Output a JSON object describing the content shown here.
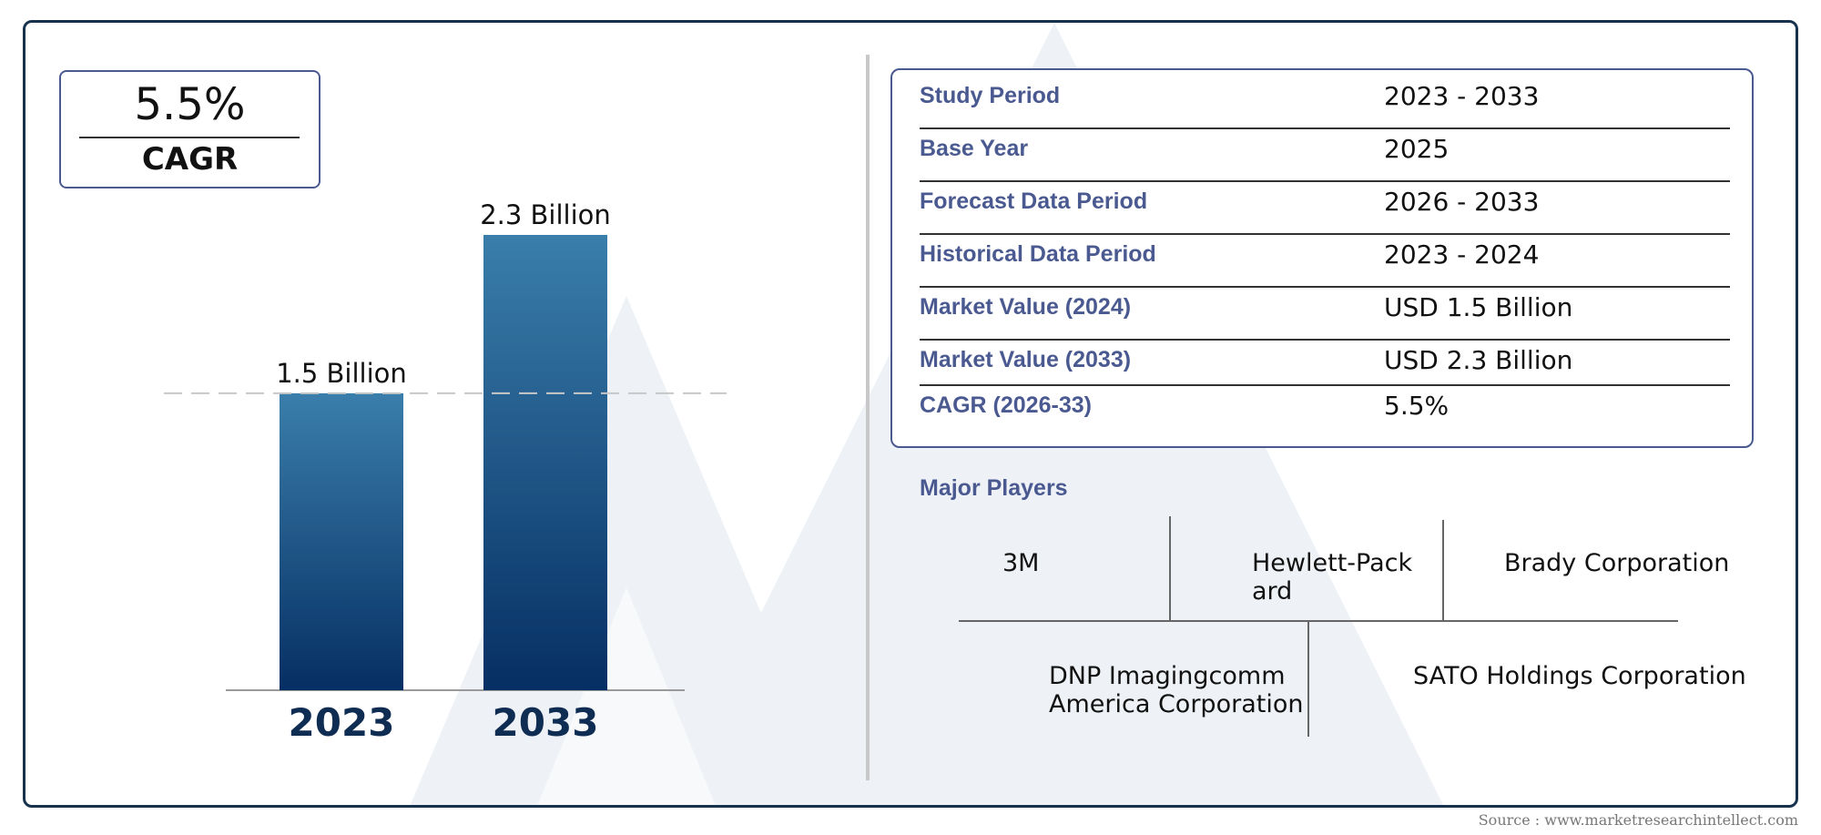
{
  "cagr_badge": {
    "value": "5.5%",
    "label": "CAGR"
  },
  "chart_data": {
    "type": "bar",
    "categories": [
      "2023",
      "2033"
    ],
    "values": [
      1.5,
      2.3
    ],
    "data_labels": [
      "1.5 Billion",
      "2.3 Billion"
    ],
    "title": "",
    "xlabel": "",
    "ylabel": "",
    "ylim": [
      0,
      2.3
    ],
    "reference_line": 1.5,
    "grid": false,
    "colors": {
      "bar_top": "#3a7eab",
      "bar_bottom": "#062f64",
      "year_label": "#0f2d52",
      "reference_line": "#c8c8c8"
    }
  },
  "market_info": {
    "rows": [
      {
        "label": "Study Period",
        "value": "2023 - 2033"
      },
      {
        "label": "Base Year",
        "value": "2025"
      },
      {
        "label": "Forecast Data Period",
        "value": "2026 - 2033"
      },
      {
        "label": "Historical Data Period",
        "value": "2023 - 2024"
      },
      {
        "label": "Market Value (2024)",
        "value": "USD 1.5 Billion"
      },
      {
        "label": "Market Value (2033)",
        "value": "USD 2.3 Billion"
      },
      {
        "label": "CAGR (2026-33)",
        "value": "5.5%"
      }
    ]
  },
  "major_players": {
    "title": "Major Players",
    "players": [
      "3M",
      "Hewlett-Pack\nard",
      "Brady Corporation",
      "DNP Imagingcomm\nAmerica Corporation",
      "SATO Holdings Corporation"
    ]
  },
  "source": "Source : www.marketresearchintellect.com",
  "colors": {
    "frame": "#16324f",
    "accent": "#4a5a91"
  }
}
